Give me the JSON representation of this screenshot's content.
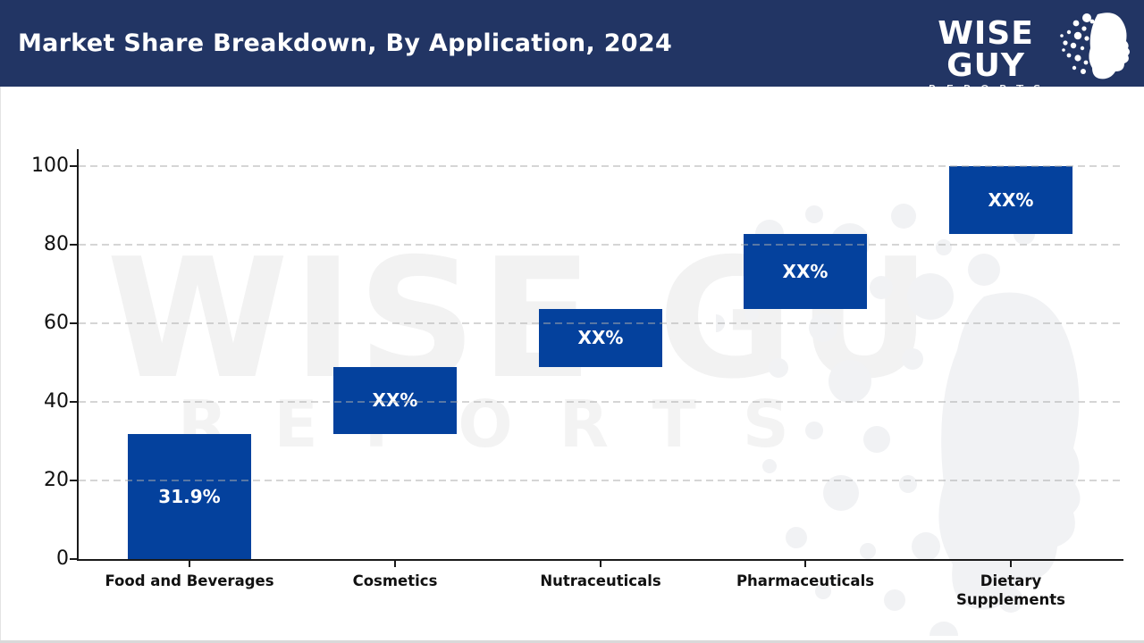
{
  "header": {
    "title": "Market Share Breakdown, By Application, 2024",
    "bg_color": "#223564",
    "logo": {
      "line1": "WISE GUY",
      "line2": "REPORTS"
    }
  },
  "watermark": {
    "line1": "WISE GU",
    "line2": "REPORTS"
  },
  "chart_data": {
    "type": "bar",
    "subtype": "waterfall",
    "title": "Market Share Breakdown, By Application, 2024",
    "xlabel": "",
    "ylabel": "",
    "ylim": [
      0,
      105
    ],
    "grid": true,
    "gridline_style": "dashed",
    "bar_color": "#04419D",
    "label_color": "#ffffff",
    "y_ticks": [
      0,
      20,
      40,
      60,
      80,
      100
    ],
    "categories": [
      "Food and Beverages",
      "Cosmetics",
      "Nutraceuticals",
      "Pharmaceuticals",
      "Dietary\nSupplements"
    ],
    "series": [
      {
        "name": "Market Share",
        "segments": [
          {
            "category": "Food and Beverages",
            "start": 0,
            "end": 31.9,
            "label": "31.9%"
          },
          {
            "category": "Cosmetics",
            "start": 31.9,
            "end": 48.9,
            "label": "XX%"
          },
          {
            "category": "Nutraceuticals",
            "start": 48.9,
            "end": 63.6,
            "label": "XX%"
          },
          {
            "category": "Pharmaceuticals",
            "start": 63.6,
            "end": 82.7,
            "label": "XX%"
          },
          {
            "category": "Dietary Supplements",
            "start": 82.7,
            "end": 100,
            "label": "XX%"
          }
        ]
      }
    ]
  }
}
